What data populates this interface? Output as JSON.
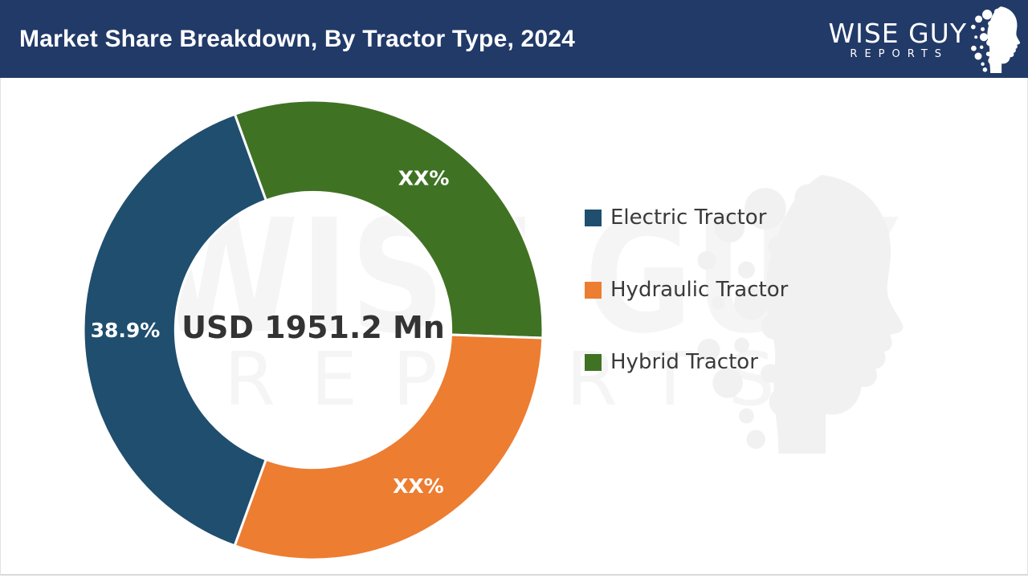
{
  "header": {
    "title": "Market Share Breakdown, By Tractor Type, 2024",
    "logo": {
      "line1": "WISE GUY",
      "line2": "REPORTS"
    }
  },
  "watermark": {
    "line1": "WISE GUY",
    "line2": "REPORTS"
  },
  "chart_data": {
    "type": "pie",
    "subtype": "donut",
    "title": "Market Share Breakdown, By Tractor Type, 2024",
    "center_label": "USD 1951.2 Mn",
    "total_label_value": 1951.2,
    "total_label_unit": "USD Mn",
    "start_angle_deg": 200,
    "inner_radius_ratio": 0.6,
    "legend_position": "right",
    "slices": [
      {
        "name": "Electric Tractor",
        "pct": 38.9,
        "label": "38.9%",
        "color": "#1F4E6F"
      },
      {
        "name": "Hybrid Tractor",
        "pct": 31.1,
        "label": "XX%",
        "color": "#407224"
      },
      {
        "name": "Hydraulic Tractor",
        "pct": 30.0,
        "label": "XX%",
        "color": "#ED7D31"
      }
    ],
    "legend": [
      {
        "label": "Electric Tractor",
        "color": "#1F4E6F"
      },
      {
        "label": "Hydraulic Tractor",
        "color": "#ED7D31"
      },
      {
        "label": "Hybrid Tractor",
        "color": "#407224"
      }
    ]
  },
  "colors": {
    "header_bg": "#223A68",
    "slice_label_text": "#FFFFFF",
    "center_label_text": "#333333",
    "legend_text": "#3A3A3A",
    "watermark": "#F5F5F5"
  }
}
